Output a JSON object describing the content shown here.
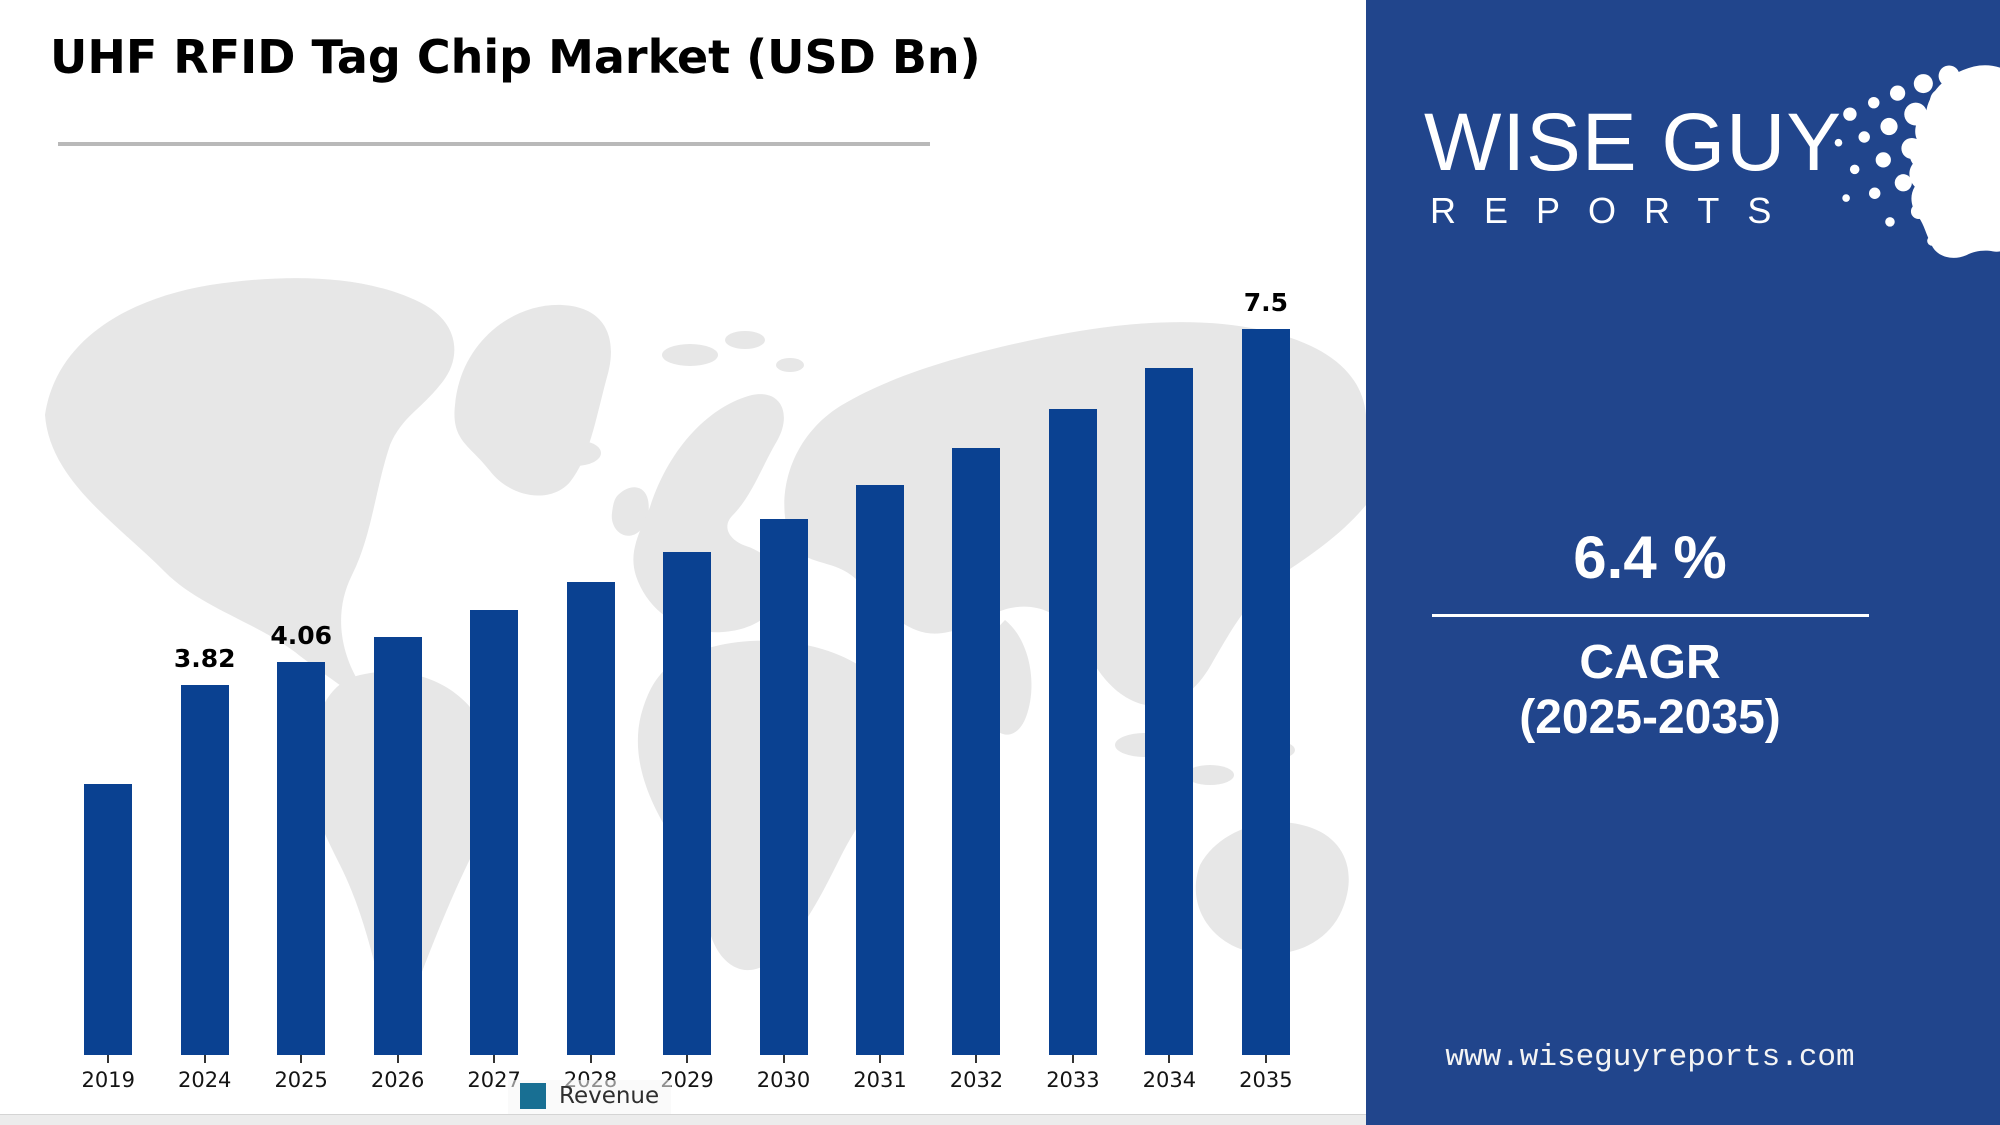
{
  "title": "UHF RFID Tag Chip Market (USD Bn)",
  "chart_data": {
    "type": "bar",
    "title": "UHF RFID Tag Chip Market (USD Bn)",
    "categories": [
      "2019",
      "2024",
      "2025",
      "2026",
      "2027",
      "2028",
      "2029",
      "2030",
      "2031",
      "2032",
      "2033",
      "2034",
      "2035"
    ],
    "values": [
      2.8,
      3.82,
      4.06,
      4.32,
      4.6,
      4.89,
      5.2,
      5.54,
      5.89,
      6.27,
      6.67,
      7.1,
      7.5
    ],
    "bar_labels": [
      "",
      "3.82",
      "4.06",
      "",
      "",
      "",
      "",
      "",
      "",
      "",
      "",
      "",
      "7.5"
    ],
    "xlabel": "",
    "ylabel": "",
    "ylim": [
      0,
      8
    ],
    "grid": false,
    "legend_position": "bottom-center"
  },
  "legend": {
    "label": "Revenue"
  },
  "sidebar": {
    "brand_line1": "WISE GUY",
    "brand_line2": "REPORTS",
    "cagr_value": "6.4 %",
    "cagr_label": "CAGR",
    "cagr_period": "(2025-2035)",
    "website": "www.wiseguyreports.com"
  },
  "colors": {
    "bar": "#0a4191",
    "sidebar_bg": "#21458c",
    "legend_swatch": "#186f93",
    "map_land": "#e7e7e7",
    "title_rule": "#b9b9b9"
  }
}
